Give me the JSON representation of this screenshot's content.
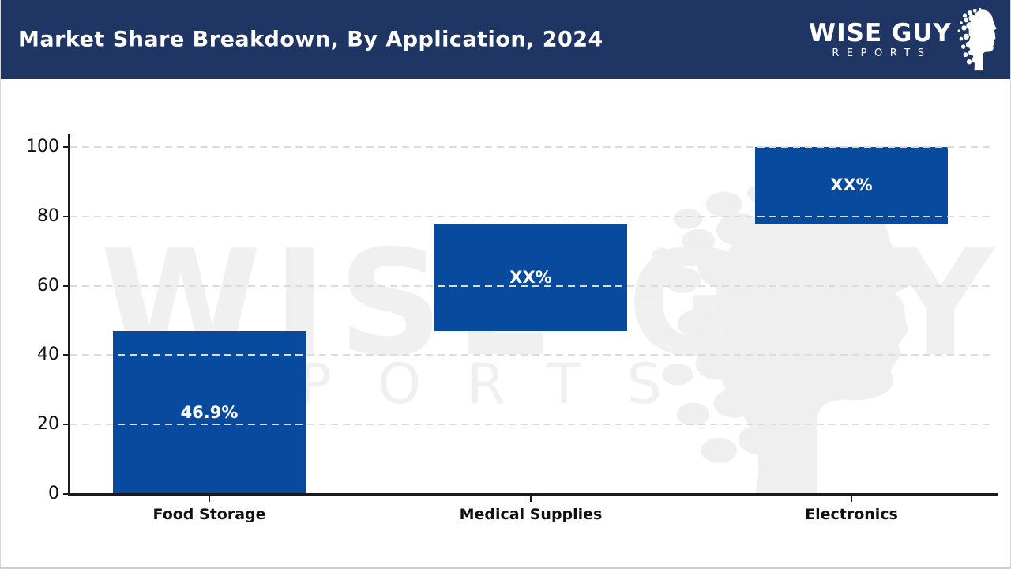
{
  "header": {
    "title": "Market Share Breakdown, By Application, 2024",
    "logo": {
      "line1": "WISE GUY",
      "line2": "REPORTS"
    }
  },
  "watermark": {
    "line1": "WISE GUY",
    "line2": "REPORTS"
  },
  "chart_data": {
    "type": "bar",
    "variant": "floating-waterfall",
    "title": "Market Share Breakdown, By Application, 2024",
    "categories": [
      "Food Storage",
      "Medical Supplies",
      "Electronics"
    ],
    "segments": [
      {
        "category": "Food Storage",
        "start": 0,
        "end": 46.9,
        "label": "46.9%"
      },
      {
        "category": "Medical Supplies",
        "start": 46.9,
        "end": 78,
        "label": "XX%"
      },
      {
        "category": "Electronics",
        "start": 78,
        "end": 100,
        "label": "XX%"
      }
    ],
    "ylim": [
      0,
      100
    ],
    "yticks": [
      0,
      20,
      40,
      60,
      80,
      100
    ],
    "xlabel": "",
    "ylabel": "",
    "grid": {
      "axis": "y",
      "style": "dashed",
      "color": "#dcdcdc"
    },
    "legend": "none",
    "bar_color": "#084a9e",
    "bar_label_color": "#ffffff",
    "axis_color": "#1a1a1a"
  },
  "colors": {
    "header_bg": "#1f3563",
    "header_text": "#ffffff",
    "watermark": "#f0f0f1",
    "background": "#ffffff"
  }
}
